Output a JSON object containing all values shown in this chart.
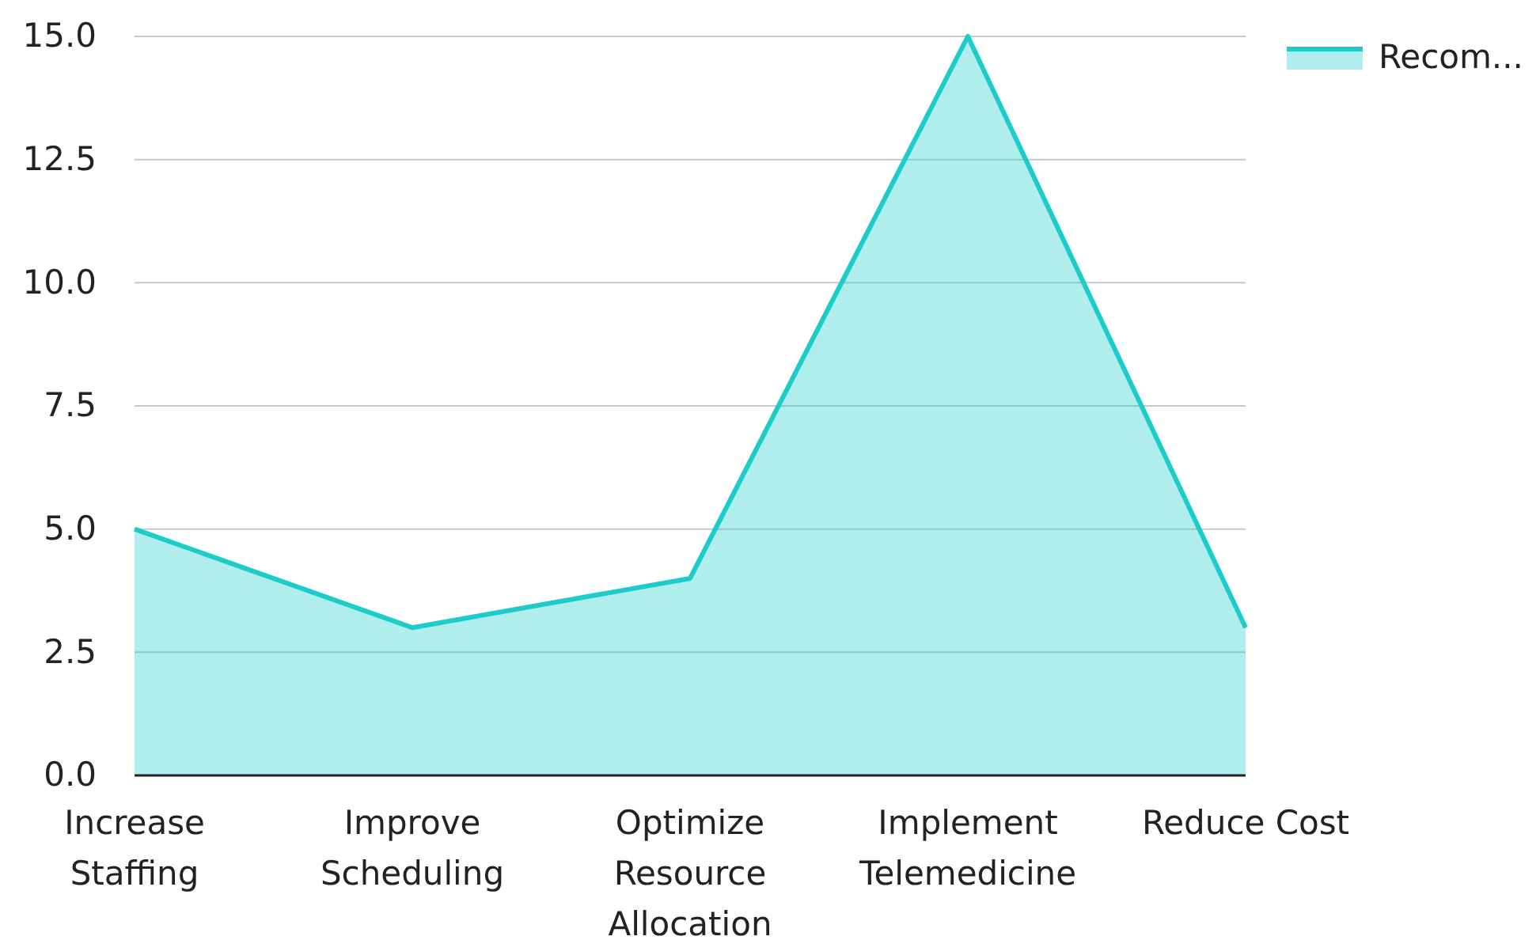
{
  "chart_data": {
    "type": "area",
    "categories": [
      "Increase Staffing",
      "Improve Scheduling",
      "Optimize Resource Allocation",
      "Implement Telemedicine",
      "Reduce Cost"
    ],
    "series": [
      {
        "name": "Recom...",
        "color": "#1ecbcb",
        "values": [
          5,
          3,
          4,
          15,
          3
        ]
      }
    ],
    "ylim": [
      0,
      15
    ],
    "yticks": [
      {
        "value": 0,
        "label": "0.0"
      },
      {
        "value": 2.5,
        "label": "2.5"
      },
      {
        "value": 5,
        "label": "5.0"
      },
      {
        "value": 7.5,
        "label": "7.5"
      },
      {
        "value": 10,
        "label": "10.0"
      },
      {
        "value": 12.5,
        "label": "12.5"
      },
      {
        "value": 15,
        "label": "15.0"
      }
    ],
    "grid": "y",
    "legend": "top right"
  }
}
